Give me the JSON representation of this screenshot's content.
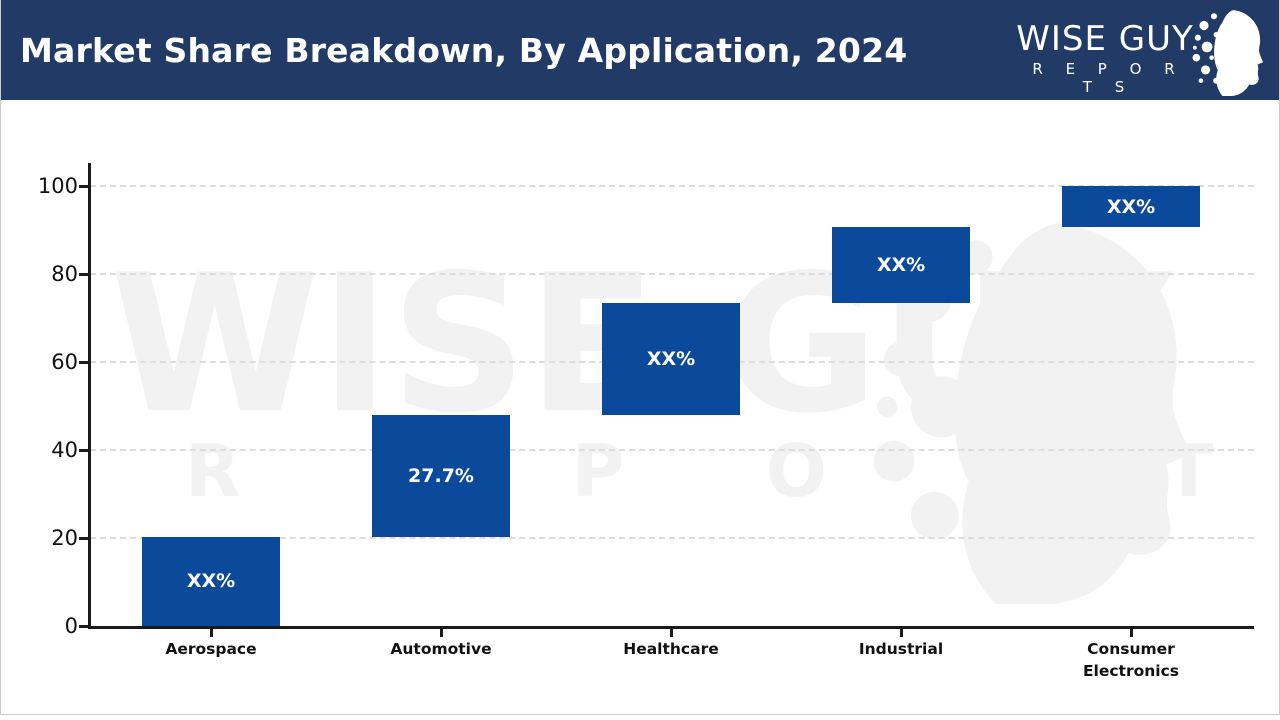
{
  "header": {
    "title": "Market Share Breakdown, By Application, 2024",
    "logo": {
      "line1": "WISE GUY",
      "line2": "R E P O R T S"
    }
  },
  "watermark": {
    "line1": "WISE GUY",
    "line2": "R E P O R T S"
  },
  "colors": {
    "header_bg": "#213a66",
    "bar_fill": "#0b4a9b",
    "grid": "#dcdcdc",
    "axis": "#1a1a1a",
    "bar_label_text": "#ffffff",
    "watermark": "#f2f2f2"
  },
  "chart_data": {
    "type": "bar",
    "subtype": "floating-waterfall",
    "title": "Market Share Breakdown, By Application, 2024",
    "categories": [
      "Aerospace",
      "Automotive",
      "Healthcare",
      "Industrial",
      "Consumer Electronics"
    ],
    "segments": [
      {
        "category": "Aerospace",
        "start": 0,
        "end": 20.3,
        "label": "XX%"
      },
      {
        "category": "Automotive",
        "start": 20.3,
        "end": 48.0,
        "label": "27.7%"
      },
      {
        "category": "Healthcare",
        "start": 48.0,
        "end": 73.5,
        "label": "XX%"
      },
      {
        "category": "Industrial",
        "start": 73.5,
        "end": 90.6,
        "label": "XX%"
      },
      {
        "category": "Consumer Electronics",
        "start": 90.6,
        "end": 100.0,
        "label": "XX%"
      }
    ],
    "yticks": [
      0,
      20,
      40,
      60,
      80,
      100
    ],
    "ylim": [
      0,
      100
    ],
    "xlabel": "",
    "ylabel": "",
    "grid": "horizontal-dashed",
    "legend": "none"
  }
}
